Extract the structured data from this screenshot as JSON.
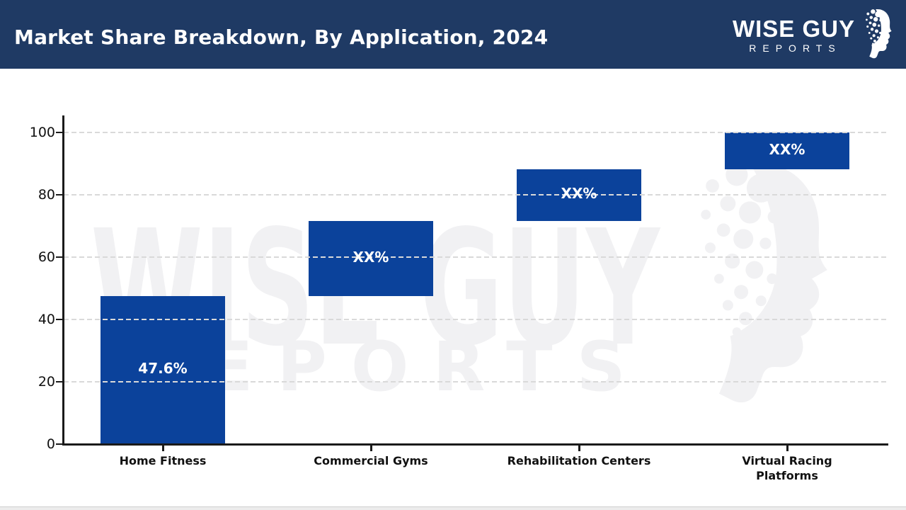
{
  "header": {
    "title": "Market Share Breakdown, By Application, 2024",
    "logo": {
      "brand_top": "WISE GUY",
      "brand_bottom": "REPORTS"
    }
  },
  "watermark": {
    "line1": "WISE GUY",
    "line2": "REPORTS"
  },
  "colors": {
    "header_bg": "#1f3a64",
    "bar": "#0b429b",
    "bar_label": "#ffffff",
    "grid": "#d9d9d9",
    "axis": "#1a1a1a",
    "watermark": "#f1f1f3"
  },
  "chart_data": {
    "type": "bar",
    "subtype": "waterfall",
    "title": "Market Share Breakdown, By Application, 2024",
    "categories": [
      "Home Fitness",
      "Commercial Gyms",
      "Rehabilitation Centers",
      "Virtual Racing Platforms"
    ],
    "segments": [
      {
        "category": "Home Fitness",
        "start": 0,
        "end": 47.6,
        "label": "47.6%"
      },
      {
        "category": "Commercial Gyms",
        "start": 47.6,
        "end": 71.6,
        "label": "XX%"
      },
      {
        "category": "Rehabilitation Centers",
        "start": 71.6,
        "end": 88.2,
        "label": "XX%"
      },
      {
        "category": "Virtual Racing Platforms",
        "start": 88.2,
        "end": 100,
        "label": "XX%"
      }
    ],
    "xlabel": "",
    "ylabel": "",
    "ylim": [
      0,
      100
    ],
    "yticks": [
      0,
      20,
      40,
      60,
      80,
      100
    ],
    "grid": "horizontal-dashed",
    "legend": "none"
  }
}
